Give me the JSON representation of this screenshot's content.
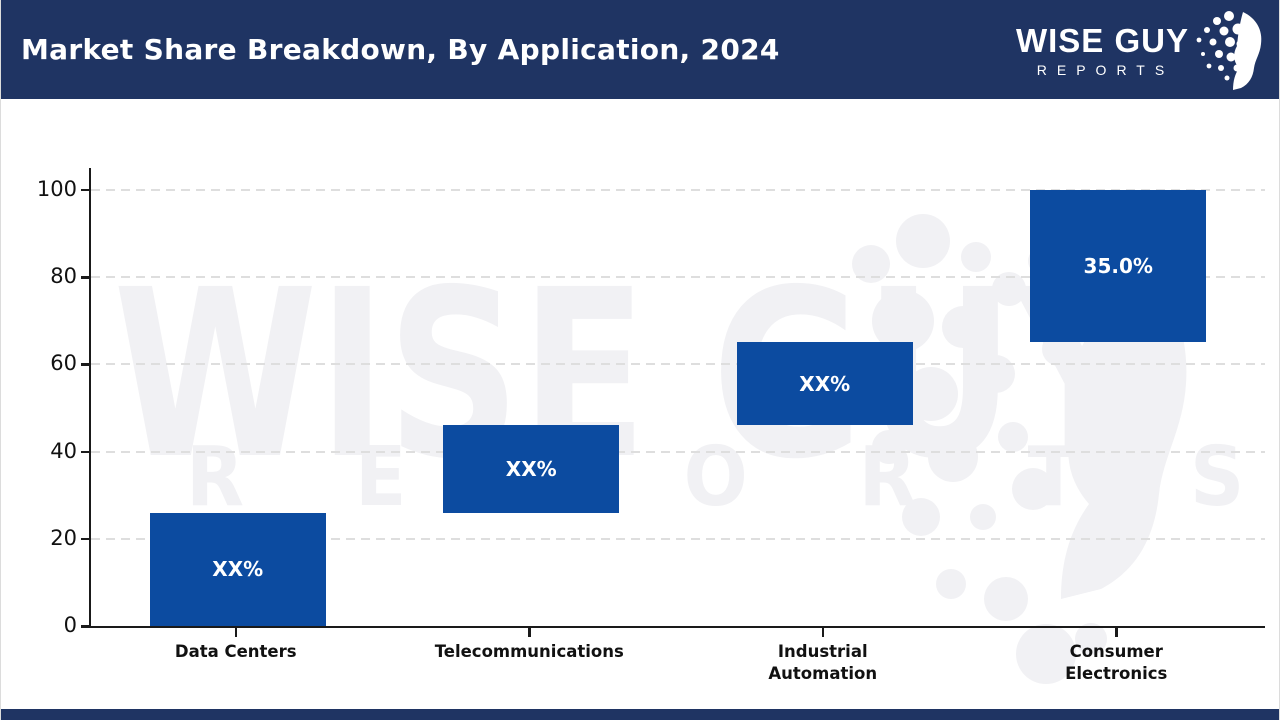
{
  "header": {
    "title": "Market Share Breakdown, By Application, 2024",
    "bg_color": "#1f3463",
    "logo": {
      "wordmark": "WISE GUY",
      "subtext": "REPORTS"
    }
  },
  "watermark": {
    "line1": "WISE GUY",
    "line2": "R E P O R T S"
  },
  "footer": {
    "bg_color": "#1f3463"
  },
  "chart_data": {
    "type": "bar",
    "variant": "stepped-waterfall",
    "title": "Market Share Breakdown, By Application, 2024",
    "categories": [
      {
        "lines": [
          "Data Centers"
        ]
      },
      {
        "lines": [
          "Telecommunications"
        ]
      },
      {
        "lines": [
          "Industrial",
          "Automation"
        ]
      },
      {
        "lines": [
          "Consumer",
          "Electronics"
        ]
      }
    ],
    "bars": [
      {
        "category": "Data Centers",
        "start": 0,
        "end": 26,
        "label": "XX%"
      },
      {
        "category": "Telecommunications",
        "start": 26,
        "end": 46,
        "label": "XX%"
      },
      {
        "category": "Industrial Automation",
        "start": 46,
        "end": 65,
        "label": "XX%"
      },
      {
        "category": "Consumer Electronics",
        "start": 65,
        "end": 100,
        "label": "35.0%"
      }
    ],
    "yticks": [
      0,
      20,
      40,
      60,
      80,
      100
    ],
    "ylim": [
      0,
      105
    ],
    "xlabel": "",
    "ylabel": "",
    "bar_width_fraction": 0.6,
    "bar_color": "#0c4ba0",
    "grid": {
      "horizontal": true,
      "style": "dashed",
      "color": "#dedede"
    },
    "legend": null,
    "watermark_color": "#f1f1f4"
  }
}
